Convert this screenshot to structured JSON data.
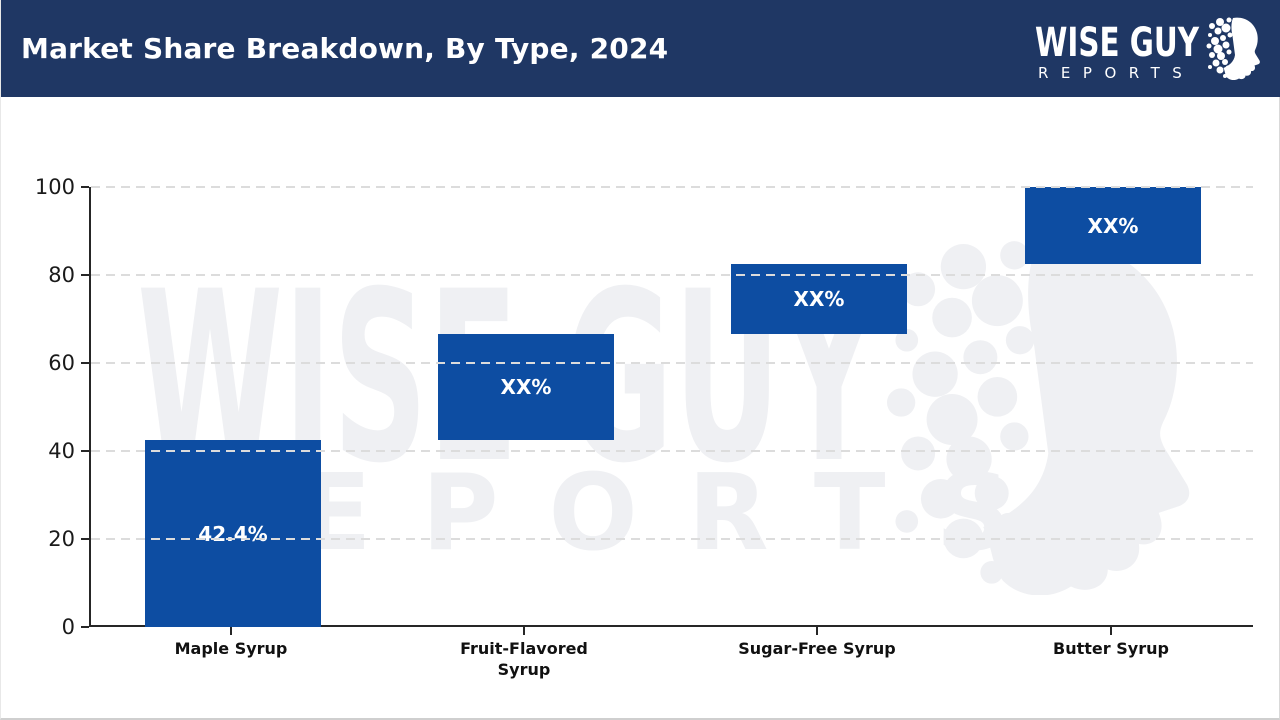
{
  "header": {
    "title": "Market Share Breakdown, By Type, 2024",
    "bg_color": "#1F3764",
    "logo": {
      "line1": "WISE GUY",
      "line2": "REPORTS"
    }
  },
  "watermark": {
    "line1": "WISE GUY",
    "line2": "REPORTS"
  },
  "chart_data": {
    "type": "bar",
    "subtype": "waterfall-stacked-market-share",
    "title": "Market Share Breakdown, By Type, 2024",
    "categories": [
      "Maple Syrup",
      "Fruit-Flavored Syrup",
      "Sugar-Free Syrup",
      "Butter Syrup"
    ],
    "bars": [
      {
        "category": "Maple Syrup",
        "start": 0,
        "end": 42.4,
        "label": "42.4%"
      },
      {
        "category": "Fruit-Flavored Syrup",
        "start": 42.4,
        "end": 66.5,
        "label": "XX%"
      },
      {
        "category": "Sugar-Free Syrup",
        "start": 66.5,
        "end": 82.5,
        "label": "XX%"
      },
      {
        "category": "Butter Syrup",
        "start": 82.5,
        "end": 100,
        "label": "XX%"
      }
    ],
    "xlabel": "",
    "ylabel": "",
    "ylim": [
      0,
      100
    ],
    "yticks": [
      0,
      20,
      40,
      60,
      80,
      100
    ],
    "grid": "horizontal-dashed",
    "legend": "none",
    "bar_color": "#0D4DA2",
    "value_label_color": "#FFFFFF",
    "axis_color": "#262626",
    "gridline_color": "#DCDCDC"
  }
}
